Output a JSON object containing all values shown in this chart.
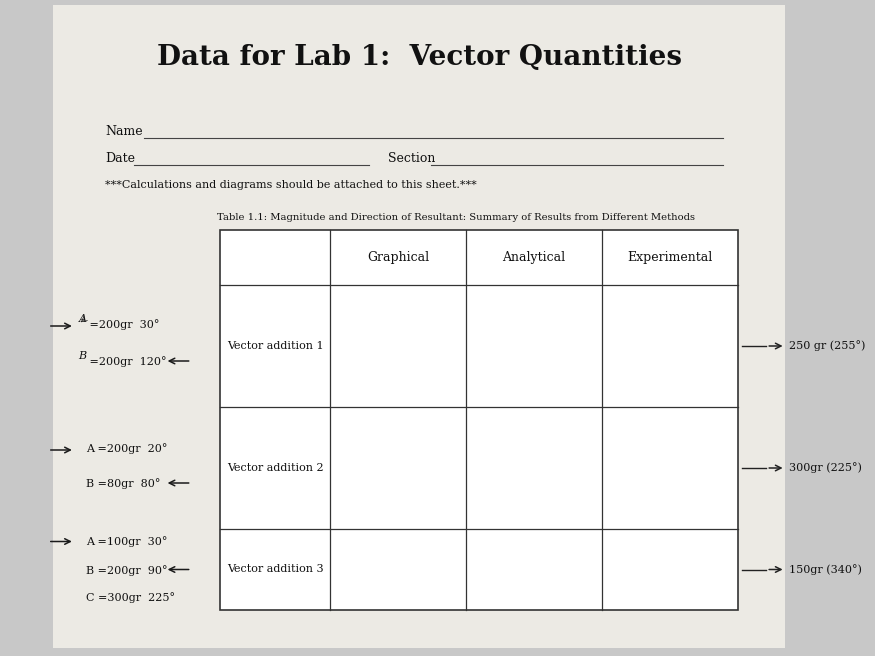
{
  "title": "Data for Lab 1:  Vector Quantities",
  "title_fontsize": 20,
  "bg_color": "#c8c8c8",
  "paper_color": "#eceae4",
  "name_label": "Name",
  "date_label": "Date",
  "section_label": "Section",
  "calc_note": "***Calculations and diagrams should be attached to this sheet.***",
  "table_title": "Table 1.1: Magnitude and Direction of Resultant: Summary of Results from Different Methods",
  "col_headers": [
    "Graphical",
    "Analytical",
    "Experimental"
  ],
  "row_labels": [
    "Vector addition 1",
    "Vector addition 2",
    "Vector addition 3"
  ],
  "right_annotations": [
    "250 gr (255°)",
    "300gr (225°)",
    "150gr (340°)"
  ]
}
